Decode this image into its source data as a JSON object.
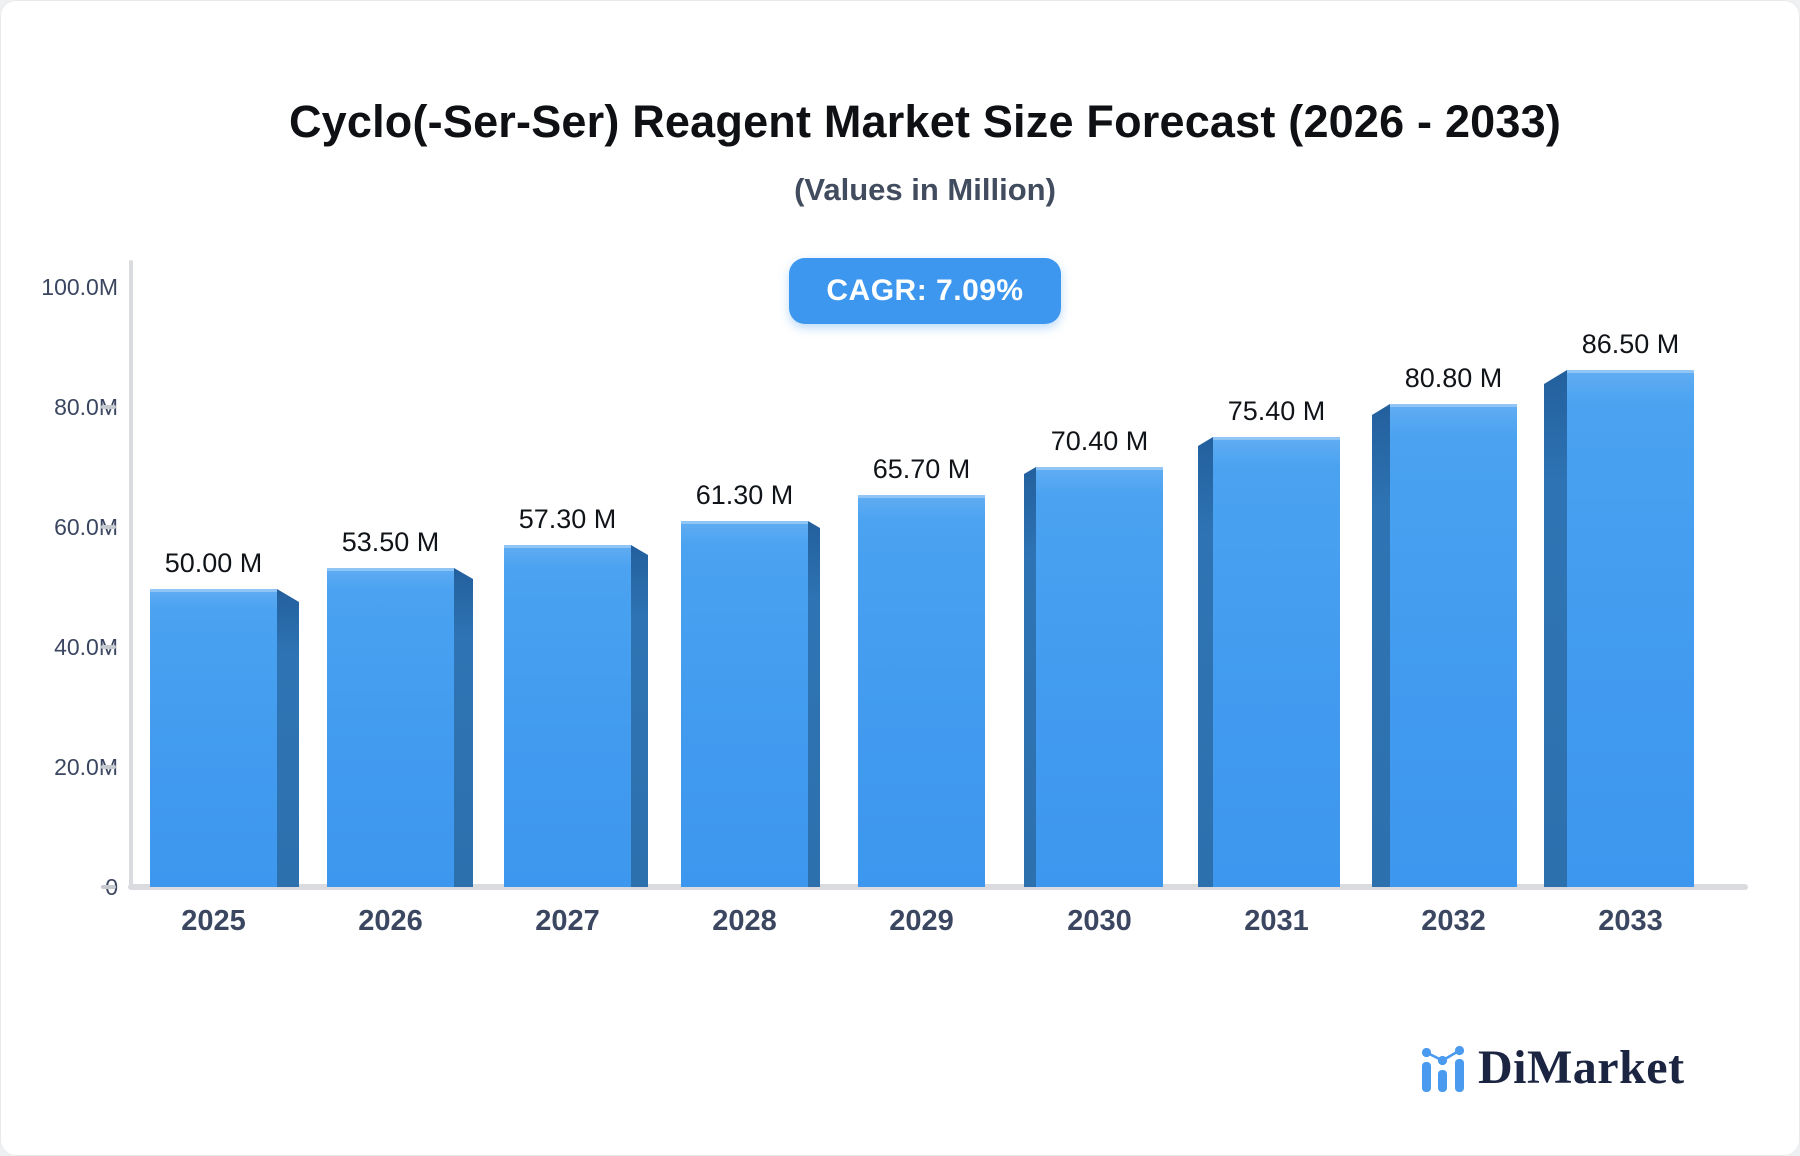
{
  "header": {
    "title": "Cyclo(-Ser-Ser) Reagent Market Size Forecast (2026 - 2033)",
    "subtitle": "(Values in Million)",
    "cagr_badge": "CAGR: 7.09%"
  },
  "chart_data": {
    "type": "bar",
    "title": "Cyclo(-Ser-Ser) Reagent Market Size Forecast (2026 - 2033)",
    "subtitle": "(Values in Million)",
    "unit": "Million",
    "cagr_percent": 7.09,
    "categories": [
      "2025",
      "2026",
      "2027",
      "2028",
      "2029",
      "2030",
      "2031",
      "2032",
      "2033"
    ],
    "values": [
      50.0,
      53.5,
      57.3,
      61.3,
      65.7,
      70.4,
      75.4,
      80.8,
      86.5
    ],
    "value_labels": [
      "50.00 M",
      "53.50 M",
      "57.30 M",
      "61.30 M",
      "65.70 M",
      "70.40 M",
      "75.40 M",
      "80.80 M",
      "86.50 M"
    ],
    "xlabel": "",
    "ylabel": "",
    "ylim": [
      0,
      100
    ],
    "y_tick_labels": [
      "100.0M",
      "80.0M",
      "60.0M",
      "40.0M",
      "20.0M",
      "0"
    ],
    "grid": false,
    "legend": false,
    "bar_style": "3d-bevel"
  },
  "colors": {
    "accent_blue": "#3E97EF",
    "bar_face": "#449DEF",
    "bar_side": "#2D72B1",
    "title_text": "#0E1014",
    "subtitle_text": "#414C5E",
    "axis_text": "#3B4660",
    "axis_line": "#D9DBDE",
    "logo_text": "#1B2440",
    "logo_icon": "#4A9BF0"
  },
  "logo": {
    "text": "DiMarket",
    "icon": "bar-chart-logo-icon"
  }
}
